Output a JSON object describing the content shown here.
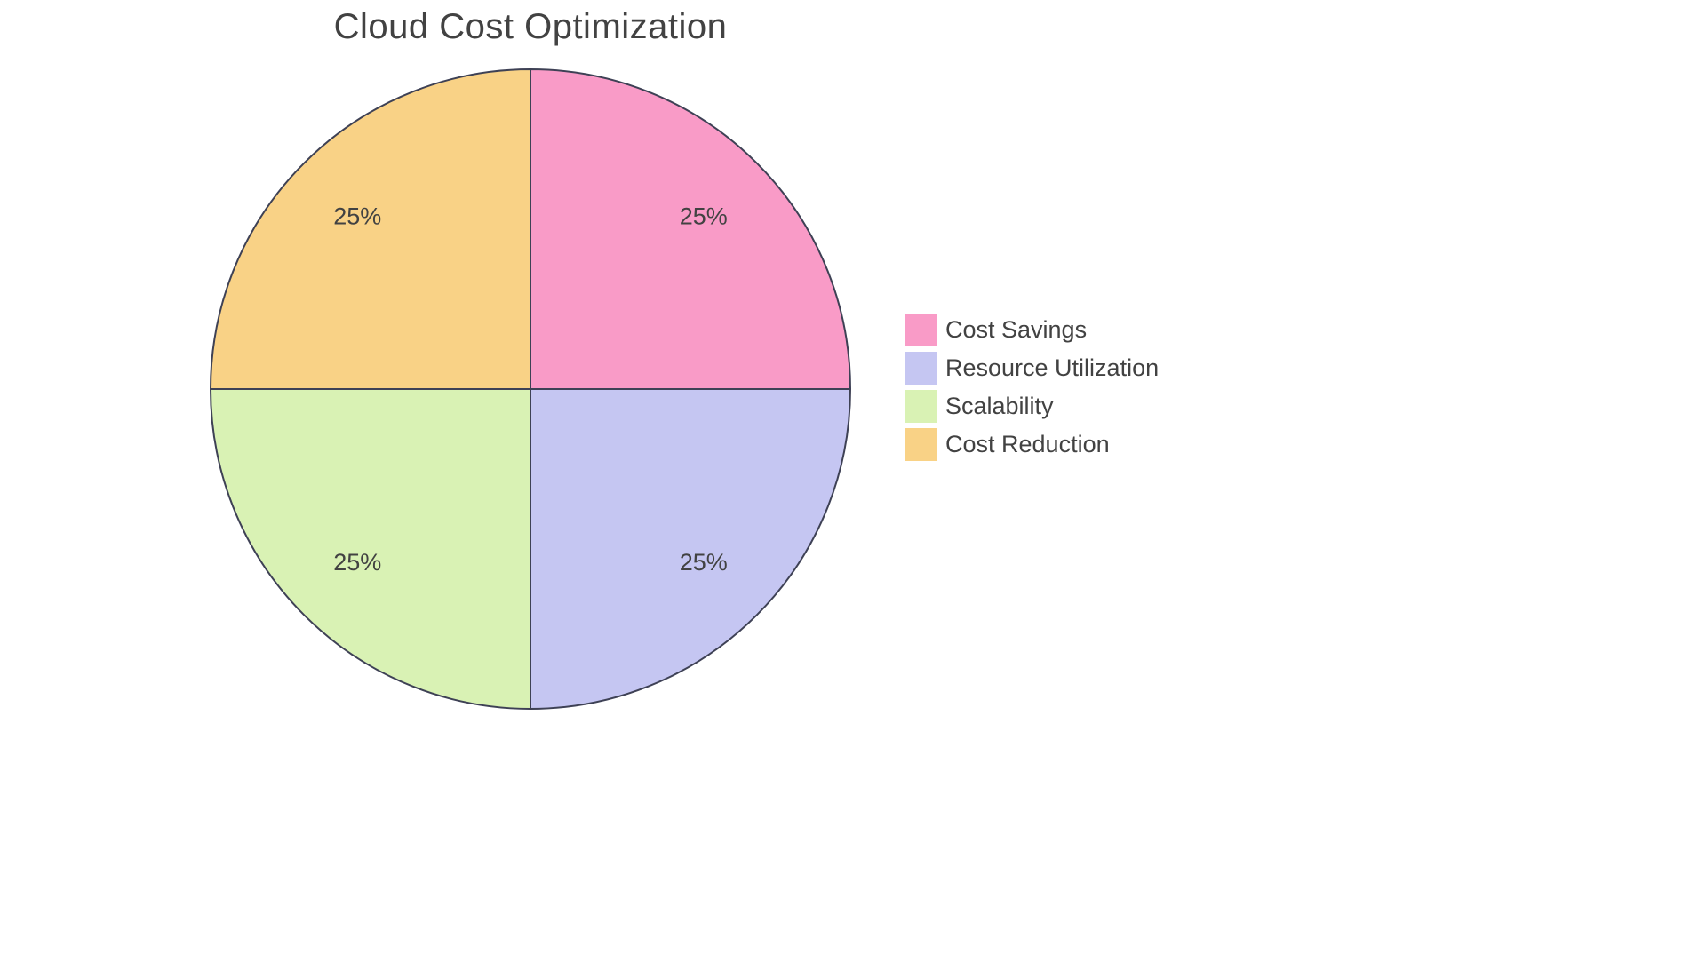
{
  "chart_data": {
    "type": "pie",
    "title": "Cloud Cost Optimization",
    "labels": [
      "Cost Savings",
      "Resource Utilization",
      "Scalability",
      "Cost Reduction"
    ],
    "values": [
      25,
      25,
      25,
      25
    ],
    "value_labels": [
      "25%",
      "25%",
      "25%",
      "25%"
    ],
    "colors": [
      "#F99BC7",
      "#C5C6F2",
      "#D9F2B4",
      "#F9D286"
    ],
    "slice_stroke_color": "#3E4155",
    "text_color": "#424242",
    "background_color": "#FFFFFF",
    "legend_position": "right",
    "start_angle": "top",
    "direction": "clockwise"
  }
}
